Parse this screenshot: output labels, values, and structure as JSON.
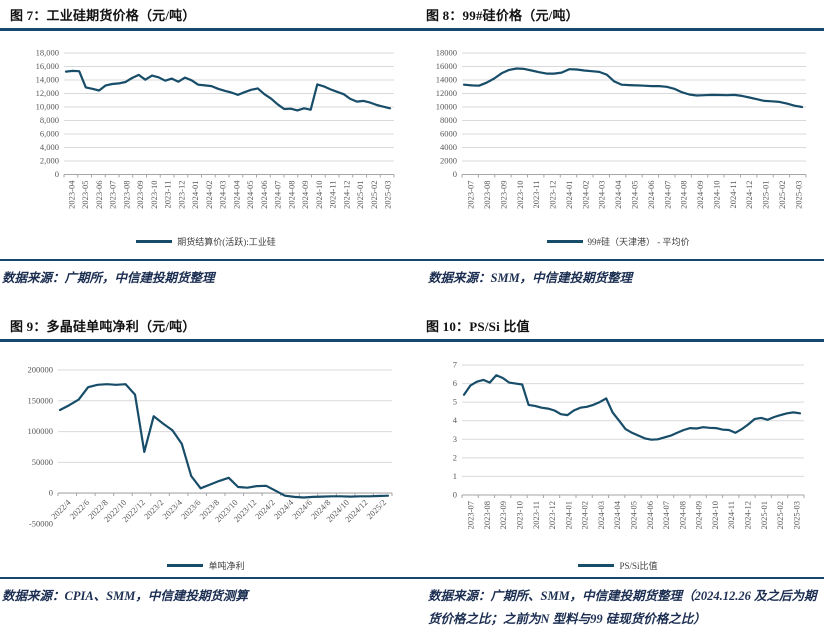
{
  "colors": {
    "line": "#174d69",
    "rule": "#17466f",
    "grid": "#d9d9d9",
    "axis": "#a6a6a6",
    "axis_text": "#595959",
    "title_text": "#111111",
    "source_text": "#1c2f52"
  },
  "panels": [
    {
      "title": "图 7：工业硅期货价格（元/吨）",
      "legend": "期货结算价(活跃):工业硅",
      "source": "数据来源：广期所，中信建投期货整理"
    },
    {
      "title": "图 8：99#硅价格（元/吨）",
      "legend": "99#硅（天津港） - 平均价",
      "source": "数据来源：SMM，中信建投期货整理"
    },
    {
      "title": "图 9：多晶硅单吨净利（元/吨）",
      "legend": "单吨净利",
      "source": "数据来源：CPIA、SMM，中信建投期货测算"
    },
    {
      "title": "图 10：PS/Si 比值",
      "legend": "PS/Si比值",
      "source": "数据来源：广期所、SMM，中信建投期货整理（2024.12.26 及之后为期货价格之比；之前为N 型料与99 硅现货价格之比）"
    }
  ],
  "chart_data": [
    {
      "type": "line",
      "title": "工业硅期货价格（元/吨）",
      "ylim": [
        0,
        18000
      ],
      "grid": true,
      "legend_position": "bottom",
      "ytick_labels": [
        "0",
        "2,000",
        "4,000",
        "6,000",
        "8,000",
        "10,000",
        "12,000",
        "14,000",
        "16,000",
        "18,000"
      ],
      "x_rotation": 90,
      "x_tick_labels": [
        "2023-04",
        "2023-05",
        "2023-06",
        "2023-07",
        "2023-08",
        "2023-09",
        "2023-10",
        "2023-11",
        "2023-12",
        "2024-01",
        "2024-02",
        "2024-03",
        "2024-04",
        "2024-05",
        "2024-06",
        "2024-07",
        "2024-08",
        "2024-09",
        "2024-10",
        "2024-11",
        "2024-12",
        "2025-01",
        "2025-02",
        "2025-03"
      ],
      "series": [
        {
          "name": "期货结算价(活跃):工业硅",
          "values": [
            15250,
            15350,
            15300,
            12900,
            12700,
            12450,
            13200,
            13400,
            13500,
            13700,
            14300,
            14750,
            14050,
            14650,
            14400,
            13900,
            14200,
            13750,
            14350,
            13950,
            13300,
            13200,
            13100,
            12700,
            12400,
            12150,
            11800,
            12200,
            12550,
            12750,
            11900,
            11250,
            10400,
            9700,
            9750,
            9500,
            9800,
            9600,
            13350,
            13050,
            12600,
            12250,
            11900,
            11200,
            10800,
            10900,
            10650,
            10300,
            10050,
            9800
          ]
        }
      ]
    },
    {
      "type": "line",
      "title": "99#硅价格（元/吨）",
      "ylim": [
        0,
        18000
      ],
      "grid": true,
      "legend_position": "bottom",
      "ytick_labels": [
        "0",
        "2000",
        "4000",
        "6000",
        "8000",
        "10000",
        "12000",
        "14000",
        "16000",
        "18000"
      ],
      "x_rotation": 90,
      "x_tick_labels": [
        "2023-07",
        "2023-08",
        "2023-09",
        "2023-10",
        "2023-11",
        "2023-12",
        "2024-01",
        "2024-02",
        "2024-03",
        "2024-04",
        "2024-05",
        "2024-06",
        "2024-07",
        "2024-08",
        "2024-09",
        "2024-10",
        "2024-11",
        "2024-12",
        "2025-01",
        "2025-02",
        "2025-03"
      ],
      "series": [
        {
          "name": "99#硅（天津港） - 平均价",
          "values": [
            13300,
            13200,
            13150,
            13600,
            14200,
            15000,
            15500,
            15700,
            15650,
            15400,
            15150,
            14950,
            14950,
            15100,
            15600,
            15550,
            15400,
            15300,
            15200,
            14800,
            13800,
            13300,
            13250,
            13200,
            13150,
            13100,
            13100,
            13000,
            12700,
            12200,
            11850,
            11700,
            11750,
            11800,
            11780,
            11750,
            11800,
            11650,
            11400,
            11150,
            10900,
            10850,
            10750,
            10500,
            10200,
            10000
          ]
        }
      ]
    },
    {
      "type": "line",
      "title": "多晶硅单吨净利（元/吨）",
      "ylim": [
        -50000,
        200000
      ],
      "grid": true,
      "axis_at": 0,
      "legend_position": "bottom",
      "ytick_labels": [
        "-50000",
        "0",
        "50000",
        "100000",
        "150000",
        "200000"
      ],
      "x_rotation": 45,
      "x_tick_labels": [
        "2022/4",
        "2022/6",
        "2022/8",
        "2022/10",
        "2022/12",
        "2023/2",
        "2023/4",
        "2023/6",
        "2023/8",
        "2023/10",
        "2023/12",
        "2024/2",
        "2024/4",
        "2024/6",
        "2024/8",
        "2024/10",
        "2024/12",
        "2025/2"
      ],
      "series": [
        {
          "name": "单吨净利",
          "values": [
            135000,
            143000,
            152000,
            172000,
            176000,
            177000,
            176000,
            177000,
            160000,
            67000,
            125000,
            113000,
            102000,
            80000,
            28000,
            8000,
            14000,
            20000,
            25000,
            10000,
            9000,
            11500,
            12000,
            4000,
            -4000,
            -6000,
            -7000,
            -6000,
            -5500,
            -5000,
            -5000,
            -5500,
            -5000,
            -5000,
            -4500,
            -4000
          ]
        }
      ]
    },
    {
      "type": "line",
      "title": "PS/Si 比值",
      "ylim": [
        0,
        7
      ],
      "grid": true,
      "legend_position": "bottom",
      "ytick_labels": [
        "0",
        "1",
        "2",
        "3",
        "4",
        "5",
        "6",
        "7"
      ],
      "x_rotation": 90,
      "x_tick_labels": [
        "2023-07",
        "2023-08",
        "2023-09",
        "2023-10",
        "2023-11",
        "2023-12",
        "2024-01",
        "2024-02",
        "2024-03",
        "2024-04",
        "2024-05",
        "2024-06",
        "2024-07",
        "2024-08",
        "2024-09",
        "2024-10",
        "2024-11",
        "2024-12",
        "2025-01",
        "2025-02",
        "2025-03"
      ],
      "series": [
        {
          "name": "PS/Si比值",
          "values": [
            5.4,
            5.9,
            6.1,
            6.2,
            6.05,
            6.45,
            6.3,
            6.05,
            6.0,
            5.95,
            4.85,
            4.8,
            4.7,
            4.65,
            4.55,
            4.35,
            4.3,
            4.55,
            4.7,
            4.75,
            4.85,
            5.0,
            5.2,
            4.45,
            4.0,
            3.55,
            3.35,
            3.2,
            3.05,
            2.98,
            3.0,
            3.1,
            3.2,
            3.35,
            3.5,
            3.6,
            3.58,
            3.65,
            3.62,
            3.6,
            3.52,
            3.5,
            3.35,
            3.55,
            3.8,
            4.1,
            4.15,
            4.05,
            4.2,
            4.3,
            4.4,
            4.45,
            4.4
          ]
        }
      ]
    }
  ]
}
